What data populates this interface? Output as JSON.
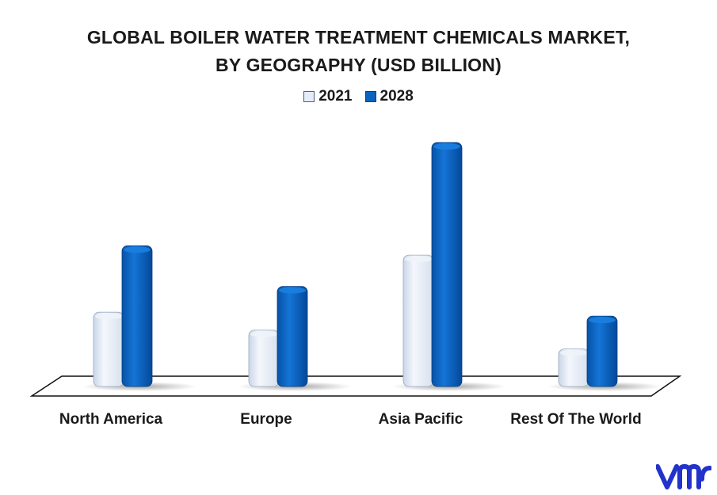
{
  "chart_data": {
    "type": "bar",
    "title": "GLOBAL BOILER WATER TREATMENT CHEMICALS MARKET,\nBY GEOGRAPHY (USD BILLION)",
    "title_lines": [
      "GLOBAL BOILER WATER TREATMENT CHEMICALS MARKET,",
      "BY GEOGRAPHY (USD BILLION)"
    ],
    "categories": [
      "North America",
      "Europe",
      "Asia Pacific",
      "Rest Of The World"
    ],
    "series": [
      {
        "name": "2021",
        "color": "#e4ecf7",
        "values": [
          0.95,
          0.72,
          1.68,
          0.48
        ]
      },
      {
        "name": "2028",
        "color": "#0a63be",
        "values": [
          1.8,
          1.28,
          3.12,
          0.9
        ]
      }
    ],
    "xlabel": "",
    "ylabel": "",
    "ylim": [
      0,
      3.2
    ],
    "grid": false,
    "legend_position": "top-center"
  },
  "logo": {
    "name": "vmr-logo",
    "color": "#2233cc"
  }
}
